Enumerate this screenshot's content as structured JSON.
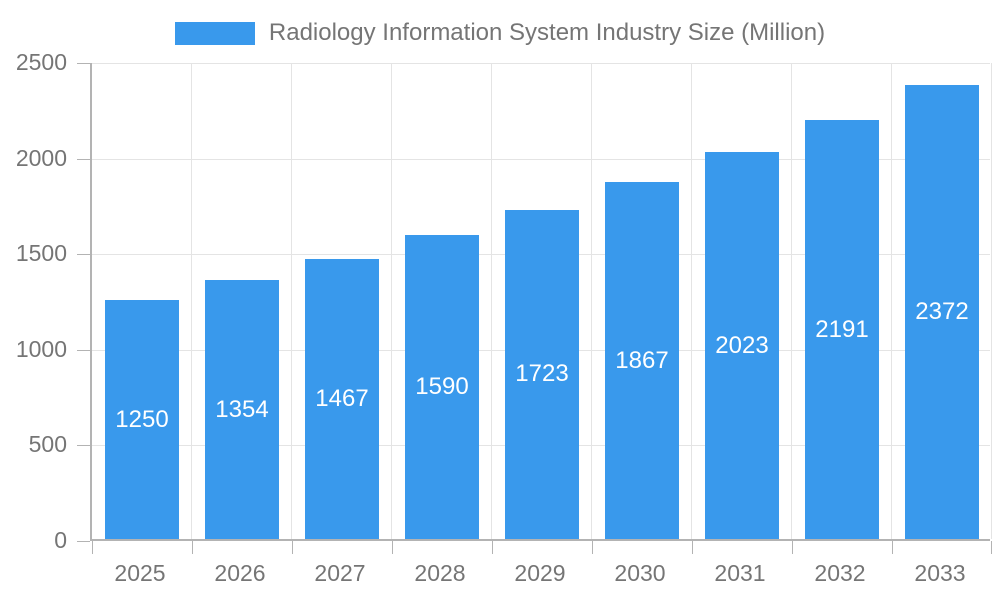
{
  "chart_data": {
    "type": "bar",
    "title": "Radiology Information System Industry Size (Million)",
    "categories": [
      "2025",
      "2026",
      "2027",
      "2028",
      "2029",
      "2030",
      "2031",
      "2032",
      "2033"
    ],
    "values": [
      1250,
      1354,
      1467,
      1590,
      1723,
      1867,
      2023,
      2191,
      2372
    ],
    "bar_value_labels": [
      "1250",
      "1354",
      "1467",
      "1590",
      "1723",
      "1867",
      "2023",
      "2191",
      "2372"
    ],
    "xlabel": "",
    "ylabel": "",
    "ylim": [
      0,
      2500
    ],
    "yticks": [
      0,
      500,
      1000,
      1500,
      2000,
      2500
    ],
    "ytick_labels": [
      "0",
      "500",
      "1000",
      "1500",
      "2000",
      "2500"
    ],
    "grid": true,
    "legend_position": "top"
  },
  "style": {
    "bar_color": "#3999EC",
    "bar_label_color": "#FFFFFF",
    "grid_color": "#E4E4E4",
    "axis_color": "#B3B3B3",
    "tick_label_color": "#757575",
    "legend_text_color": "#757575",
    "background": "#FFFFFF"
  }
}
